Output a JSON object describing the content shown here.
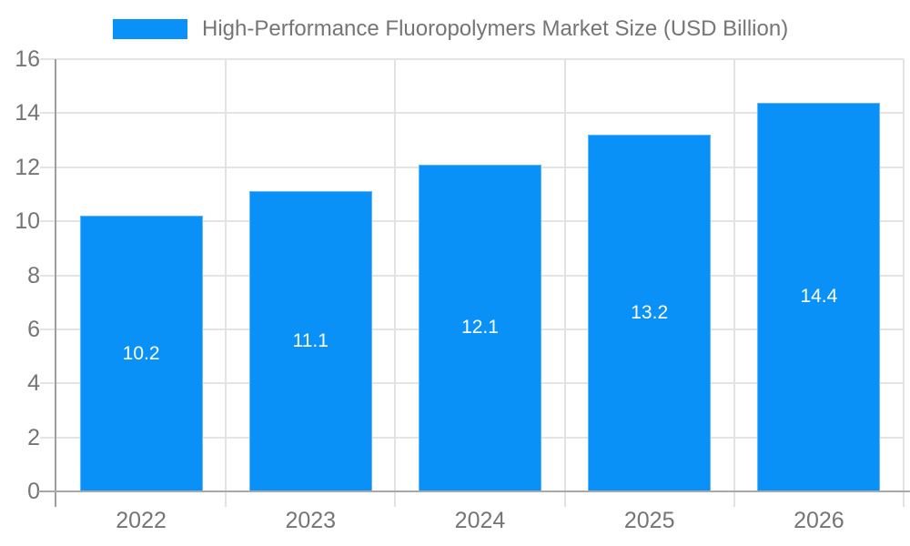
{
  "legend": {
    "label": "High-Performance Fluoropolymers Market Size (USD Billion)"
  },
  "colors": {
    "bar": "#0A91F8",
    "grid_line": "#E4E4E4",
    "axis_line": "#9E9E9E",
    "tick_text": "#757575",
    "value_label": "#FFFFFF",
    "background": "#FFFFFF"
  },
  "chart_data": {
    "type": "bar",
    "title": "High-Performance Fluoropolymers Market Size (USD Billion)",
    "categories": [
      "2022",
      "2023",
      "2024",
      "2025",
      "2026"
    ],
    "values": [
      10.2,
      11.1,
      12.1,
      13.2,
      14.4
    ],
    "value_labels": [
      "10.2",
      "11.1",
      "12.1",
      "13.2",
      "14.4"
    ],
    "xlabel": "",
    "ylabel": "",
    "ylim": [
      0,
      16
    ],
    "yticks": [
      0,
      2,
      4,
      6,
      8,
      10,
      12,
      14,
      16
    ],
    "grid": true,
    "legend_position": "top",
    "value_label_position": "inside-center"
  }
}
